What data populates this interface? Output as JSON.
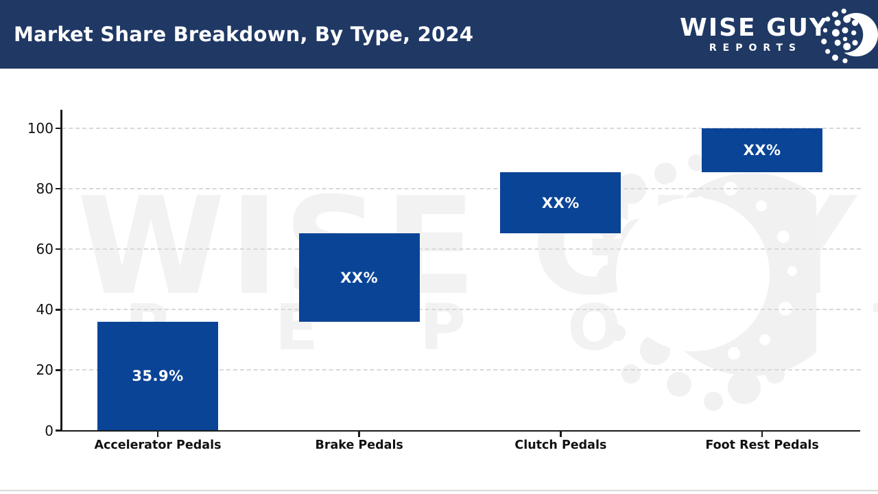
{
  "header": {
    "title": "Market Share Breakdown, By Type, 2024",
    "logo": {
      "line1": "WISE GUY",
      "line2": "REPORTS",
      "face_icon": "dotted-head-profile"
    },
    "bg_color": "#1F3864",
    "text_color": "#FFFFFF"
  },
  "watermark": {
    "line1": "WISE GUY",
    "line2": "R E P O R T S",
    "color": "#F2F2F2"
  },
  "chart_data": {
    "type": "bar",
    "variant": "floating-waterfall-segments",
    "title": "Market Share Breakdown, By Type, 2024",
    "categories": [
      "Accelerator Pedals",
      "Brake Pedals",
      "Clutch Pedals",
      "Foot Rest Pedals"
    ],
    "segments": [
      {
        "category": "Accelerator Pedals",
        "start": 0,
        "end": 35.9,
        "label": "35.9%"
      },
      {
        "category": "Brake Pedals",
        "start": 35.9,
        "end": 65.2,
        "label": "XX%"
      },
      {
        "category": "Clutch Pedals",
        "start": 65.2,
        "end": 85.5,
        "label": "XX%"
      },
      {
        "category": "Foot Rest Pedals",
        "start": 85.5,
        "end": 100,
        "label": "XX%"
      }
    ],
    "xlabel": "",
    "ylabel": "",
    "yticks": [
      0,
      20,
      40,
      60,
      80,
      100
    ],
    "ylim": [
      0,
      105
    ],
    "grid": {
      "horizontal": true,
      "vertical": false,
      "style": "dashed",
      "color": "#D8D8D8"
    },
    "legend": "none",
    "bar_color": "#0A4496",
    "bar_label_color": "#FFFFFF",
    "axis_color": "#1A1A1A"
  }
}
